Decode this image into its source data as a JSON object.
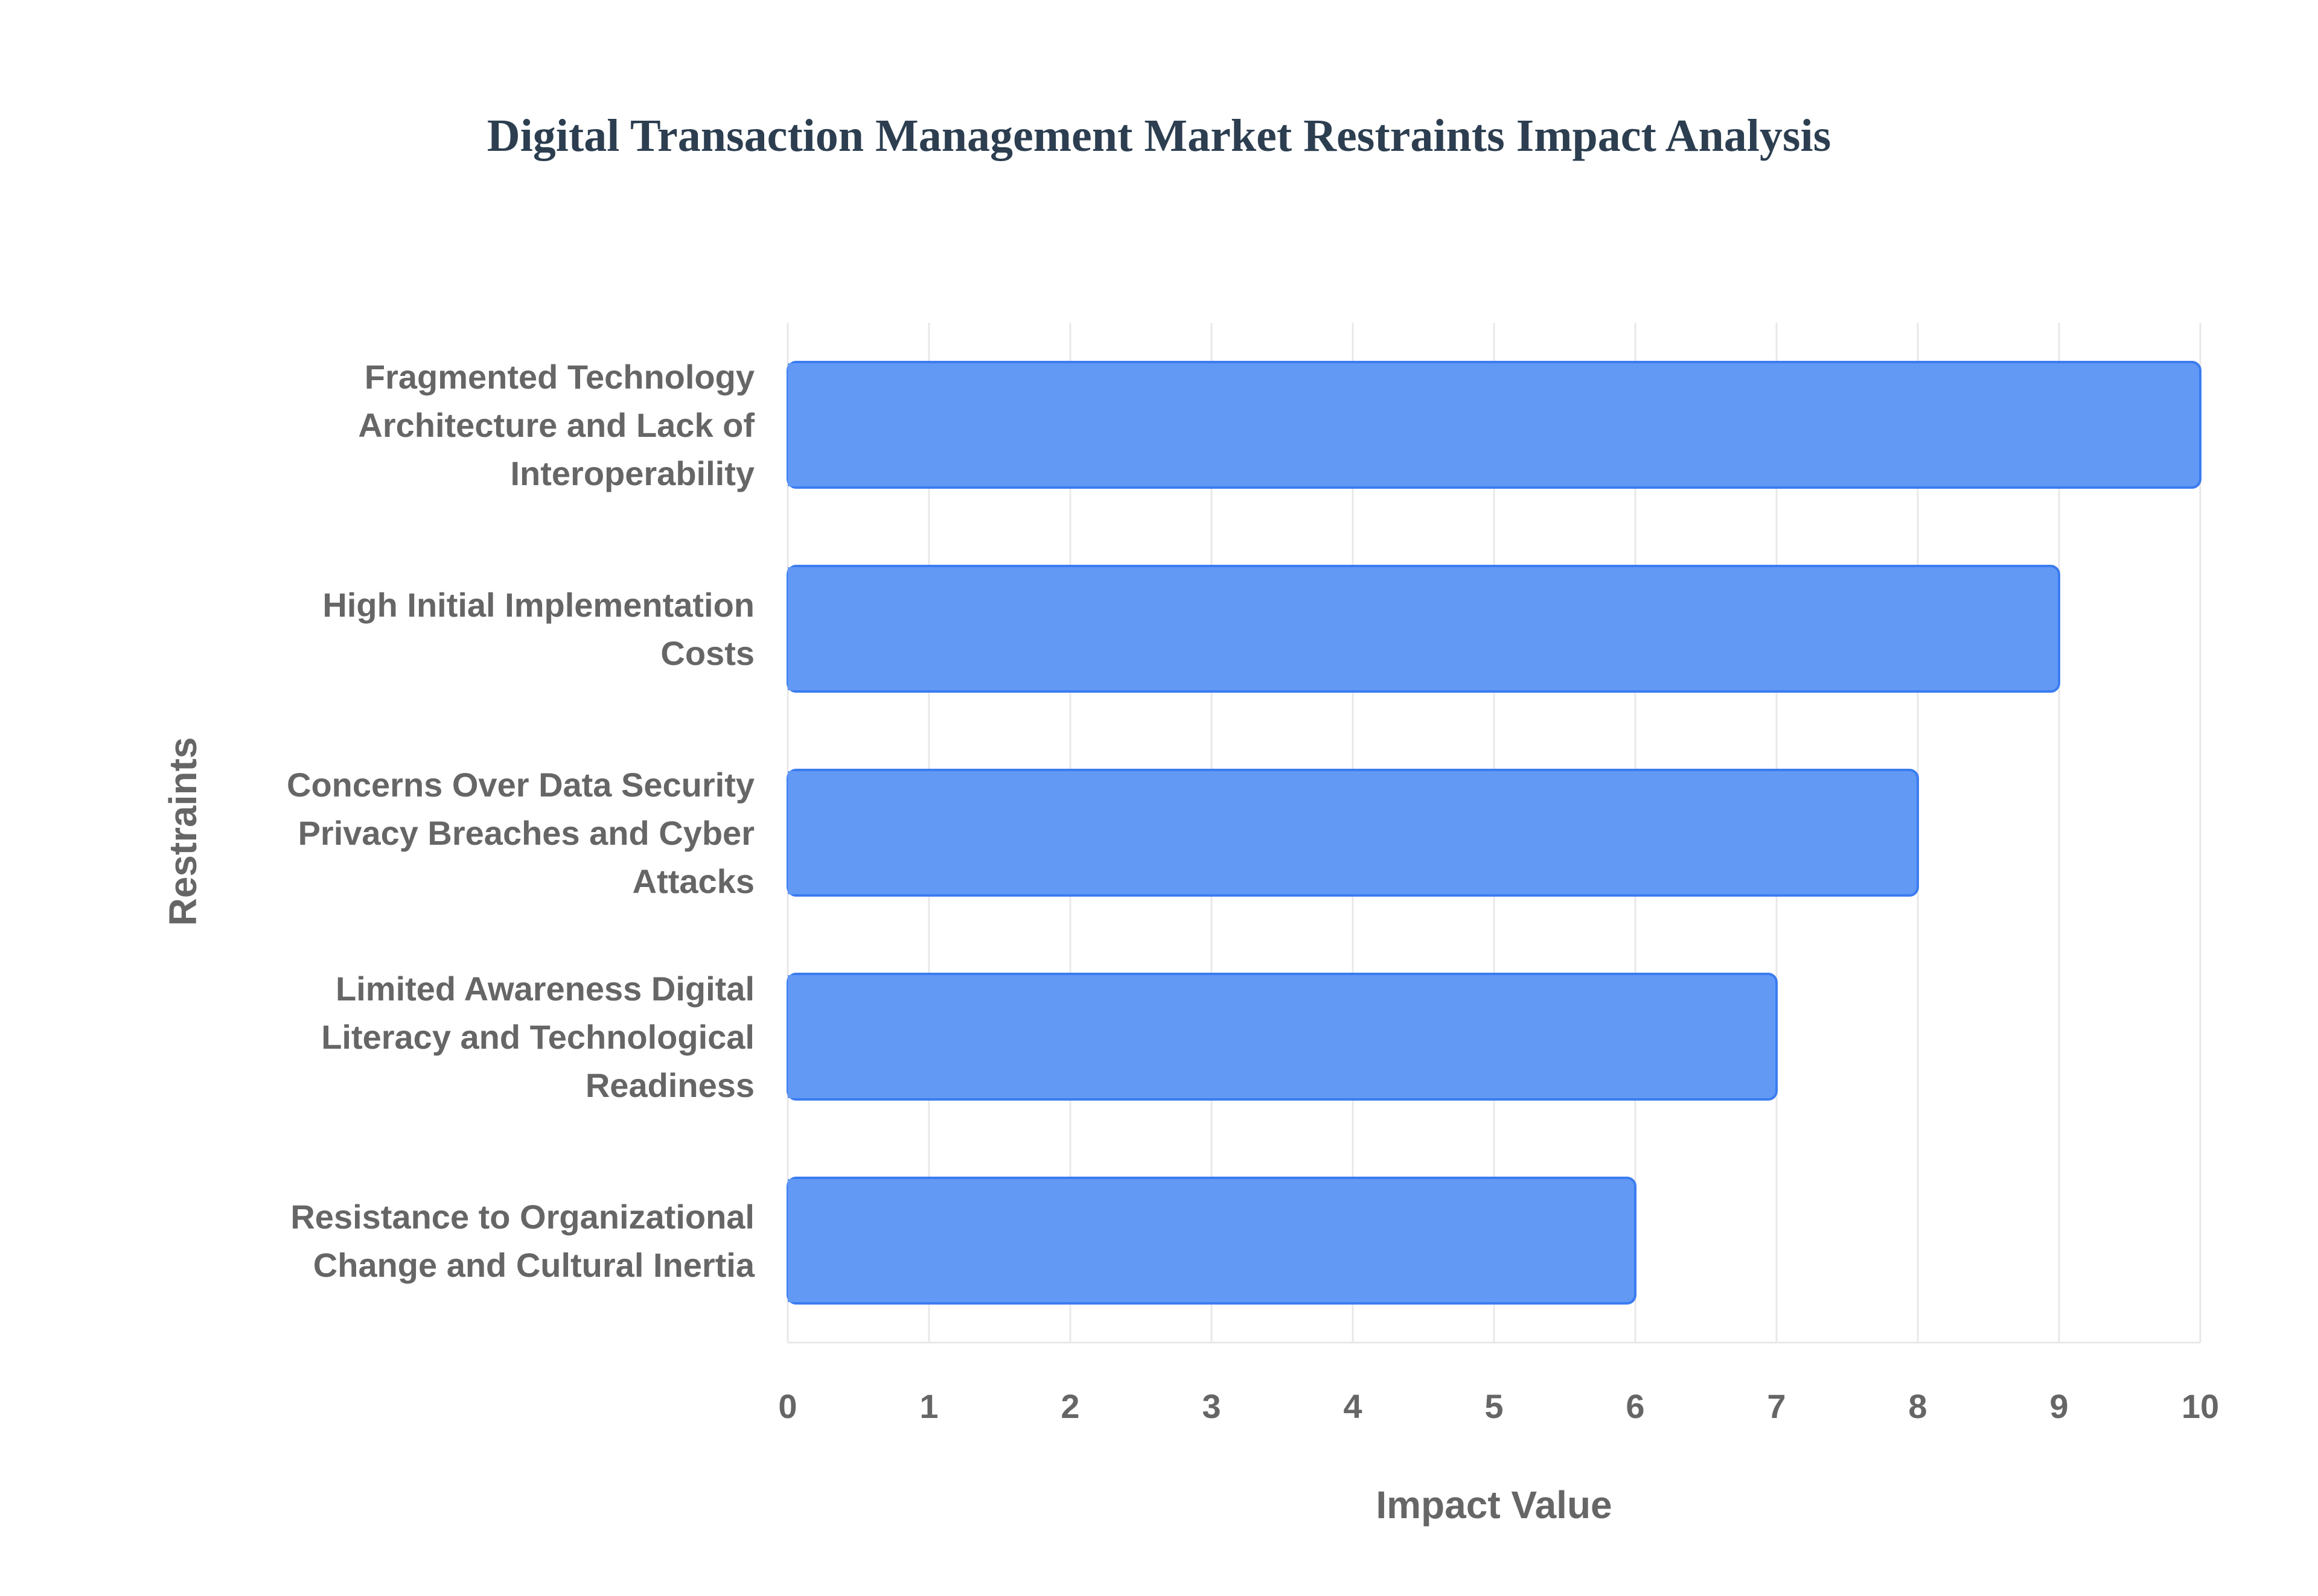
{
  "chart_data": {
    "type": "bar",
    "orientation": "horizontal",
    "title": "Digital Transaction Management Market Restraints Impact Analysis",
    "xlabel": "Impact Value",
    "ylabel": "Restraints",
    "categories": [
      "Fragmented Technology Architecture and Lack of Interoperability",
      "High Initial Implementation Costs",
      "Concerns Over Data Security Privacy Breaches and Cyber Attacks",
      "Limited Awareness Digital Literacy and Technological Readiness",
      "Resistance to Organizational Change and Cultural Inertia"
    ],
    "category_label_lines": [
      [
        "Fragmented Technology",
        "Architecture and Lack of",
        "Interoperability"
      ],
      [
        "High Initial Implementation",
        "Costs"
      ],
      [
        "Concerns Over Data Security",
        "Privacy Breaches and Cyber",
        "Attacks"
      ],
      [
        "Limited Awareness Digital",
        "Literacy and Technological",
        "Readiness"
      ],
      [
        "Resistance to Organizational",
        "Change and Cultural Inertia"
      ]
    ],
    "values": [
      10,
      9,
      8,
      7,
      6
    ],
    "xlim": [
      0,
      10
    ],
    "xticks": [
      0,
      1,
      2,
      3,
      4,
      5,
      6,
      7,
      8,
      9,
      10
    ],
    "grid": true,
    "legend": "none",
    "bar_color": "#6299f5",
    "bar_border_color": "#3b7cf0",
    "title_color": "#2c3e50",
    "label_color": "#666666",
    "grid_color": "#e8e8e8"
  }
}
